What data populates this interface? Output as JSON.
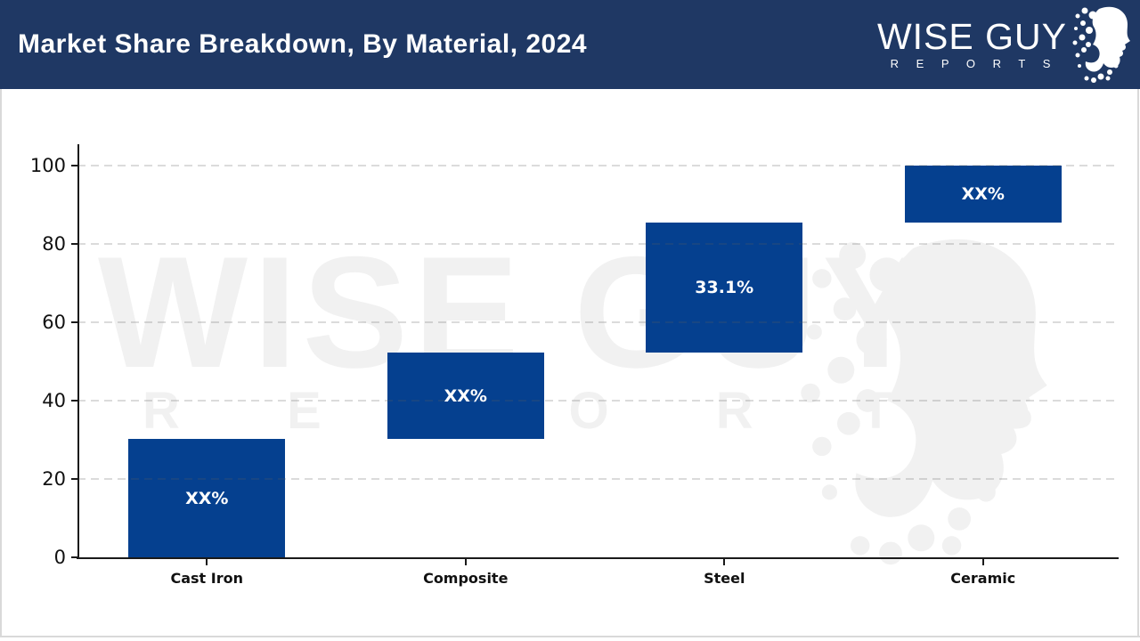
{
  "header": {
    "title": "Market Share Breakdown, By Material, 2024",
    "bg_color": "#1f3864"
  },
  "logo": {
    "name": "WISE GUY",
    "sub": "R E P O R T S"
  },
  "watermark": {
    "name": "WISE GUY",
    "sub": "R E P O R T S"
  },
  "chart_data": {
    "type": "bar",
    "subtype": "waterfall",
    "title": "Market Share Breakdown, By Material, 2024",
    "categories": [
      "Cast Iron",
      "Composite",
      "Steel",
      "Ceramic"
    ],
    "segments": [
      {
        "category": "Cast Iron",
        "start": 0,
        "end": 30.2,
        "label": "XX%"
      },
      {
        "category": "Composite",
        "start": 30.2,
        "end": 52.3,
        "label": "XX%"
      },
      {
        "category": "Steel",
        "start": 52.3,
        "end": 85.4,
        "label": "33.1%"
      },
      {
        "category": "Ceramic",
        "start": 85.4,
        "end": 100,
        "label": "XX%"
      }
    ],
    "xlabel": "",
    "ylabel": "",
    "y_ticks": [
      0,
      20,
      40,
      60,
      80,
      100
    ],
    "ylim": [
      0,
      105
    ],
    "grid": "horizontal-dashed",
    "legend_position": "none",
    "bar_color": "#05408f"
  }
}
